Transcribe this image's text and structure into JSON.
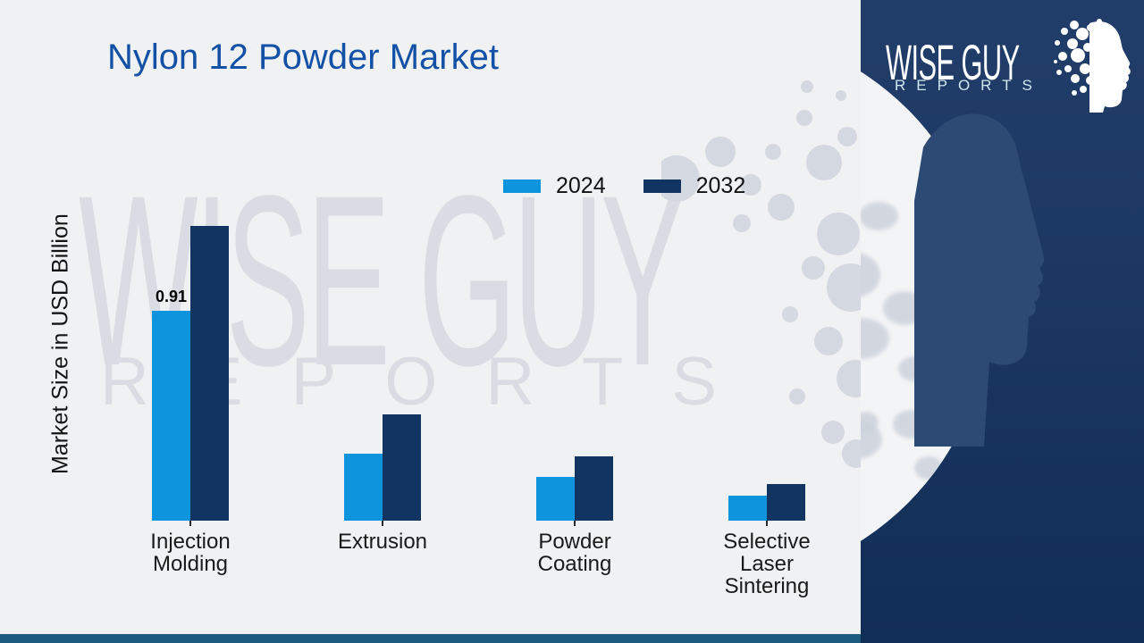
{
  "page": {
    "title": "Nylon 12 Powder Market",
    "background": "#f0f1f2",
    "title_color": "#1351a6",
    "panel_color": "#1b3762",
    "footer_color": "#1d5c7e"
  },
  "watermark": {
    "line1": "WISE GUY",
    "line2": "REPORTS"
  },
  "logo": {
    "line1": "WISE GUY",
    "line2": "REPORTS"
  },
  "chart_data": {
    "type": "bar",
    "title": "Nylon 12 Powder Market",
    "xlabel": "",
    "ylabel": "Market Size in USD Billion",
    "categories": [
      "Injection\nMolding",
      "Extrusion",
      "Powder\nCoating",
      "Selective\nLaser\nSintering"
    ],
    "series": [
      {
        "name": "2024",
        "color": "#0e93dd",
        "values": [
          0.91,
          0.29,
          0.19,
          0.11
        ]
      },
      {
        "name": "2032",
        "color": "#123460",
        "values": [
          1.28,
          0.46,
          0.28,
          0.16
        ]
      }
    ],
    "annotations": [
      {
        "group": 0,
        "series": "2024",
        "text": "0.91"
      }
    ],
    "ylim": [
      0,
      1.4
    ],
    "grid": false,
    "legend_position": "top-center"
  }
}
